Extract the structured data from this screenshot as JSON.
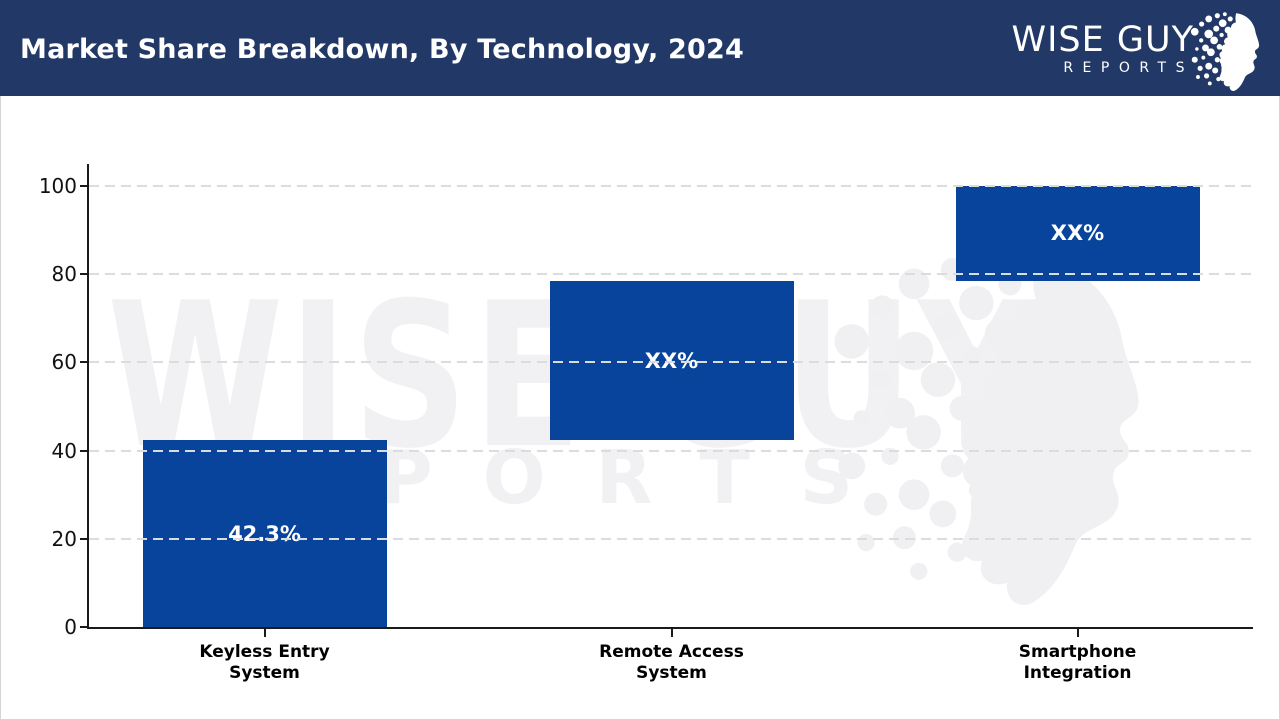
{
  "header": {
    "title": "Market Share Breakdown, By Technology, 2024",
    "bg_color": "#223968",
    "logo": {
      "line1": "WISE GUY",
      "line2": "REPORTS"
    }
  },
  "watermark": {
    "line1": "WISE GUY",
    "line2": "REPORTS"
  },
  "chart_data": {
    "type": "bar",
    "variant": "stacked-waterfall-segments",
    "title": "Market Share Breakdown, By Technology, 2024",
    "categories": [
      "Keyless Entry System",
      "Remote Access System",
      "Smartphone Integration"
    ],
    "bars": [
      {
        "category_lines": [
          "Keyless Entry",
          "System"
        ],
        "range": [
          0,
          42.3
        ],
        "label": "42.3%"
      },
      {
        "category_lines": [
          "Remote Access",
          "System"
        ],
        "range": [
          42.3,
          78.5
        ],
        "label": "XX%"
      },
      {
        "category_lines": [
          "Smartphone",
          "Integration"
        ],
        "range": [
          78.5,
          100
        ],
        "label": "XX%"
      }
    ],
    "xlabel": "",
    "ylabel": "",
    "ylim": [
      0,
      105
    ],
    "yticks": [
      0,
      20,
      40,
      60,
      80,
      100
    ],
    "grid": true,
    "grid_style": "dashed",
    "legend": false,
    "bar_color": "#08449C",
    "bar_label_color": "#FFFFFF",
    "axis_color": "#1A1A1A",
    "grid_color": "#DCDCDC",
    "watermark_color": "#F1F1F3"
  }
}
